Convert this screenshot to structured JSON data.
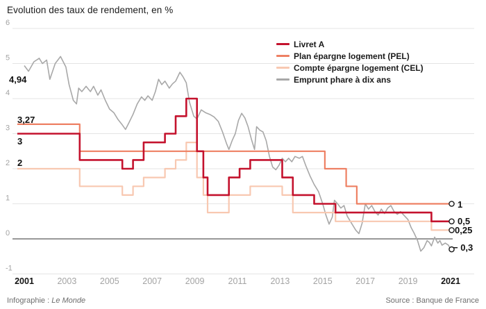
{
  "title": "Evolution des taux de rendement, en %",
  "colors": {
    "background": "#ffffff",
    "grid_line": "#e4e4e4",
    "zero_line": "#5a5a5a",
    "axis_text": "#a3a3a3",
    "axis_text_dark": "#141414",
    "marker_stroke": "#1a1a1a",
    "livret_a": "#c4122d",
    "pel": "#ee8063",
    "cel": "#f8c8b1",
    "emprunt": "#a8a8a8"
  },
  "legend": [
    {
      "label": "Livret A",
      "color": "#c4122d"
    },
    {
      "label": "Plan épargne logement (PEL)",
      "color": "#ee8063"
    },
    {
      "label": "Compte épargne logement (CEL)",
      "color": "#f8c8b1"
    },
    {
      "label": "Emprunt phare à dix ans",
      "color": "#a8a8a8"
    }
  ],
  "y_axis": {
    "ticks": [
      {
        "label": "6",
        "value": 6
      },
      {
        "label": "5",
        "value": 5
      },
      {
        "label": "4",
        "value": 4
      },
      {
        "label": "3",
        "value": 3
      },
      {
        "label": "2",
        "value": 2
      },
      {
        "label": "1",
        "value": 1
      },
      {
        "label": "0",
        "value": 0
      },
      {
        "label": "-1",
        "value": -1
      }
    ]
  },
  "x_axis": {
    "ticks": [
      {
        "label": "2001",
        "year": 2001,
        "emphasis": true
      },
      {
        "label": "2003",
        "year": 2003,
        "emphasis": false
      },
      {
        "label": "2005",
        "year": 2005,
        "emphasis": false
      },
      {
        "label": "2007",
        "year": 2007,
        "emphasis": false
      },
      {
        "label": "2009",
        "year": 2009,
        "emphasis": false
      },
      {
        "label": "2011",
        "year": 2011,
        "emphasis": false
      },
      {
        "label": "2013",
        "year": 2013,
        "emphasis": false
      },
      {
        "label": "2015",
        "year": 2015,
        "emphasis": false
      },
      {
        "label": "2017",
        "year": 2017,
        "emphasis": false
      },
      {
        "label": "2019",
        "year": 2019,
        "emphasis": false
      },
      {
        "label": "2021",
        "year": 2021,
        "emphasis": true
      }
    ]
  },
  "start_labels": [
    {
      "text": "4,94",
      "series": "Emprunt phare à dix ans"
    },
    {
      "text": "3,27",
      "series": "Plan épargne logement (PEL)"
    },
    {
      "text": "3",
      "series": "Livret A"
    },
    {
      "text": "2",
      "series": "Compte épargne logement (CEL)"
    }
  ],
  "end_labels": [
    {
      "text": "1",
      "series": "Plan épargne logement (PEL)"
    },
    {
      "text": "0,5",
      "series": "Livret A"
    },
    {
      "text": "0,25",
      "series": "Compte épargne logement (CEL)"
    },
    {
      "text": "− 0,3",
      "series": "Emprunt phare à dix ans"
    }
  ],
  "footer": {
    "left_prefix": "Infographie : ",
    "left_source": "Le Monde",
    "right": "Source : Banque de France"
  },
  "chart_data": {
    "type": "line",
    "title": "Evolution des taux de rendement, en %",
    "unit": "%",
    "x_range": [
      2001,
      2021
    ],
    "y_range": [
      -1,
      6
    ],
    "grid": true,
    "legend_position": "top-right",
    "series": [
      {
        "name": "Livret A",
        "color": "#c4122d",
        "style": "step",
        "width": 2.6,
        "end_value": 0.5,
        "points": [
          [
            2000.67,
            3.0
          ],
          [
            2003.6,
            2.25
          ],
          [
            2005.6,
            2.0
          ],
          [
            2006.1,
            2.25
          ],
          [
            2006.6,
            2.75
          ],
          [
            2007.6,
            3.0
          ],
          [
            2008.1,
            3.5
          ],
          [
            2008.6,
            4.0
          ],
          [
            2009.1,
            2.5
          ],
          [
            2009.4,
            1.75
          ],
          [
            2009.6,
            1.25
          ],
          [
            2010.6,
            1.75
          ],
          [
            2011.1,
            2.0
          ],
          [
            2011.6,
            2.25
          ],
          [
            2013.1,
            1.75
          ],
          [
            2013.6,
            1.25
          ],
          [
            2014.6,
            1.0
          ],
          [
            2015.6,
            0.75
          ],
          [
            2020.1,
            0.5
          ]
        ]
      },
      {
        "name": "Plan épargne logement (PEL)",
        "color": "#ee8063",
        "style": "step",
        "width": 2.2,
        "end_value": 1.0,
        "points": [
          [
            2000.67,
            3.27
          ],
          [
            2003.6,
            2.5
          ],
          [
            2015.1,
            2.0
          ],
          [
            2016.1,
            1.5
          ],
          [
            2016.6,
            1.0
          ]
        ]
      },
      {
        "name": "Compte épargne logement (CEL)",
        "color": "#f8c8b1",
        "style": "step",
        "width": 2.2,
        "end_value": 0.25,
        "points": [
          [
            2000.67,
            2.0
          ],
          [
            2003.6,
            1.5
          ],
          [
            2005.6,
            1.25
          ],
          [
            2006.1,
            1.5
          ],
          [
            2006.6,
            1.75
          ],
          [
            2007.6,
            2.0
          ],
          [
            2008.1,
            2.25
          ],
          [
            2008.6,
            2.75
          ],
          [
            2009.1,
            1.75
          ],
          [
            2009.4,
            1.25
          ],
          [
            2009.6,
            0.75
          ],
          [
            2010.6,
            1.25
          ],
          [
            2011.6,
            1.5
          ],
          [
            2013.1,
            1.25
          ],
          [
            2013.6,
            0.75
          ],
          [
            2015.6,
            0.5
          ],
          [
            2020.1,
            0.25
          ]
        ]
      },
      {
        "name": "Emprunt phare à dix ans",
        "color": "#a8a8a8",
        "style": "line",
        "width": 1.6,
        "end_value": -0.3,
        "points": [
          [
            2001.0,
            4.94
          ],
          [
            2001.2,
            4.78
          ],
          [
            2001.45,
            5.05
          ],
          [
            2001.7,
            5.15
          ],
          [
            2001.85,
            5.0
          ],
          [
            2002.05,
            5.1
          ],
          [
            2002.2,
            4.55
          ],
          [
            2002.45,
            5.0
          ],
          [
            2002.7,
            5.2
          ],
          [
            2002.95,
            4.9
          ],
          [
            2003.1,
            4.4
          ],
          [
            2003.3,
            3.95
          ],
          [
            2003.45,
            3.85
          ],
          [
            2003.55,
            4.3
          ],
          [
            2003.7,
            4.2
          ],
          [
            2003.9,
            4.35
          ],
          [
            2004.1,
            4.2
          ],
          [
            2004.25,
            4.35
          ],
          [
            2004.45,
            4.1
          ],
          [
            2004.6,
            4.25
          ],
          [
            2004.8,
            3.95
          ],
          [
            2005.0,
            3.7
          ],
          [
            2005.2,
            3.6
          ],
          [
            2005.4,
            3.4
          ],
          [
            2005.6,
            3.25
          ],
          [
            2005.75,
            3.12
          ],
          [
            2005.9,
            3.3
          ],
          [
            2006.1,
            3.55
          ],
          [
            2006.3,
            3.85
          ],
          [
            2006.5,
            4.05
          ],
          [
            2006.65,
            3.95
          ],
          [
            2006.8,
            4.08
          ],
          [
            2007.0,
            3.95
          ],
          [
            2007.15,
            4.2
          ],
          [
            2007.3,
            4.55
          ],
          [
            2007.45,
            4.4
          ],
          [
            2007.6,
            4.5
          ],
          [
            2007.8,
            4.3
          ],
          [
            2007.95,
            4.42
          ],
          [
            2008.1,
            4.5
          ],
          [
            2008.3,
            4.75
          ],
          [
            2008.45,
            4.62
          ],
          [
            2008.6,
            4.45
          ],
          [
            2008.75,
            3.9
          ],
          [
            2008.95,
            3.5
          ],
          [
            2009.1,
            3.42
          ],
          [
            2009.3,
            3.68
          ],
          [
            2009.5,
            3.6
          ],
          [
            2009.7,
            3.55
          ],
          [
            2009.9,
            3.48
          ],
          [
            2010.1,
            3.35
          ],
          [
            2010.3,
            3.05
          ],
          [
            2010.5,
            2.7
          ],
          [
            2010.6,
            2.55
          ],
          [
            2010.75,
            2.8
          ],
          [
            2010.9,
            3.0
          ],
          [
            2011.05,
            3.38
          ],
          [
            2011.2,
            3.58
          ],
          [
            2011.35,
            3.45
          ],
          [
            2011.5,
            3.2
          ],
          [
            2011.65,
            2.85
          ],
          [
            2011.8,
            2.55
          ],
          [
            2011.9,
            3.2
          ],
          [
            2012.05,
            3.1
          ],
          [
            2012.2,
            3.05
          ],
          [
            2012.35,
            2.8
          ],
          [
            2012.5,
            2.35
          ],
          [
            2012.65,
            2.05
          ],
          [
            2012.8,
            1.97
          ],
          [
            2012.95,
            2.1
          ],
          [
            2013.1,
            2.3
          ],
          [
            2013.25,
            2.2
          ],
          [
            2013.4,
            2.3
          ],
          [
            2013.55,
            2.2
          ],
          [
            2013.7,
            2.35
          ],
          [
            2013.9,
            2.3
          ],
          [
            2014.05,
            2.35
          ],
          [
            2014.2,
            2.1
          ],
          [
            2014.4,
            1.8
          ],
          [
            2014.6,
            1.55
          ],
          [
            2014.8,
            1.35
          ],
          [
            2015.0,
            1.0
          ],
          [
            2015.15,
            0.68
          ],
          [
            2015.3,
            0.42
          ],
          [
            2015.45,
            0.62
          ],
          [
            2015.55,
            1.1
          ],
          [
            2015.7,
            1.0
          ],
          [
            2015.85,
            0.88
          ],
          [
            2016.0,
            0.95
          ],
          [
            2016.15,
            0.65
          ],
          [
            2016.35,
            0.45
          ],
          [
            2016.55,
            0.25
          ],
          [
            2016.7,
            0.15
          ],
          [
            2016.85,
            0.45
          ],
          [
            2017.0,
            1.0
          ],
          [
            2017.15,
            0.85
          ],
          [
            2017.3,
            0.95
          ],
          [
            2017.45,
            0.78
          ],
          [
            2017.6,
            0.68
          ],
          [
            2017.75,
            0.85
          ],
          [
            2017.9,
            0.72
          ],
          [
            2018.05,
            0.88
          ],
          [
            2018.2,
            0.95
          ],
          [
            2018.35,
            0.78
          ],
          [
            2018.5,
            0.7
          ],
          [
            2018.65,
            0.78
          ],
          [
            2018.8,
            0.68
          ],
          [
            2019.0,
            0.55
          ],
          [
            2019.15,
            0.32
          ],
          [
            2019.3,
            0.15
          ],
          [
            2019.45,
            -0.05
          ],
          [
            2019.6,
            -0.35
          ],
          [
            2019.75,
            -0.25
          ],
          [
            2019.9,
            -0.05
          ],
          [
            2020.0,
            -0.1
          ],
          [
            2020.1,
            -0.2
          ],
          [
            2020.25,
            0.05
          ],
          [
            2020.4,
            -0.12
          ],
          [
            2020.5,
            -0.05
          ],
          [
            2020.6,
            -0.18
          ],
          [
            2020.75,
            -0.12
          ],
          [
            2020.9,
            -0.18
          ],
          [
            2021.0,
            -0.3
          ]
        ]
      }
    ]
  }
}
